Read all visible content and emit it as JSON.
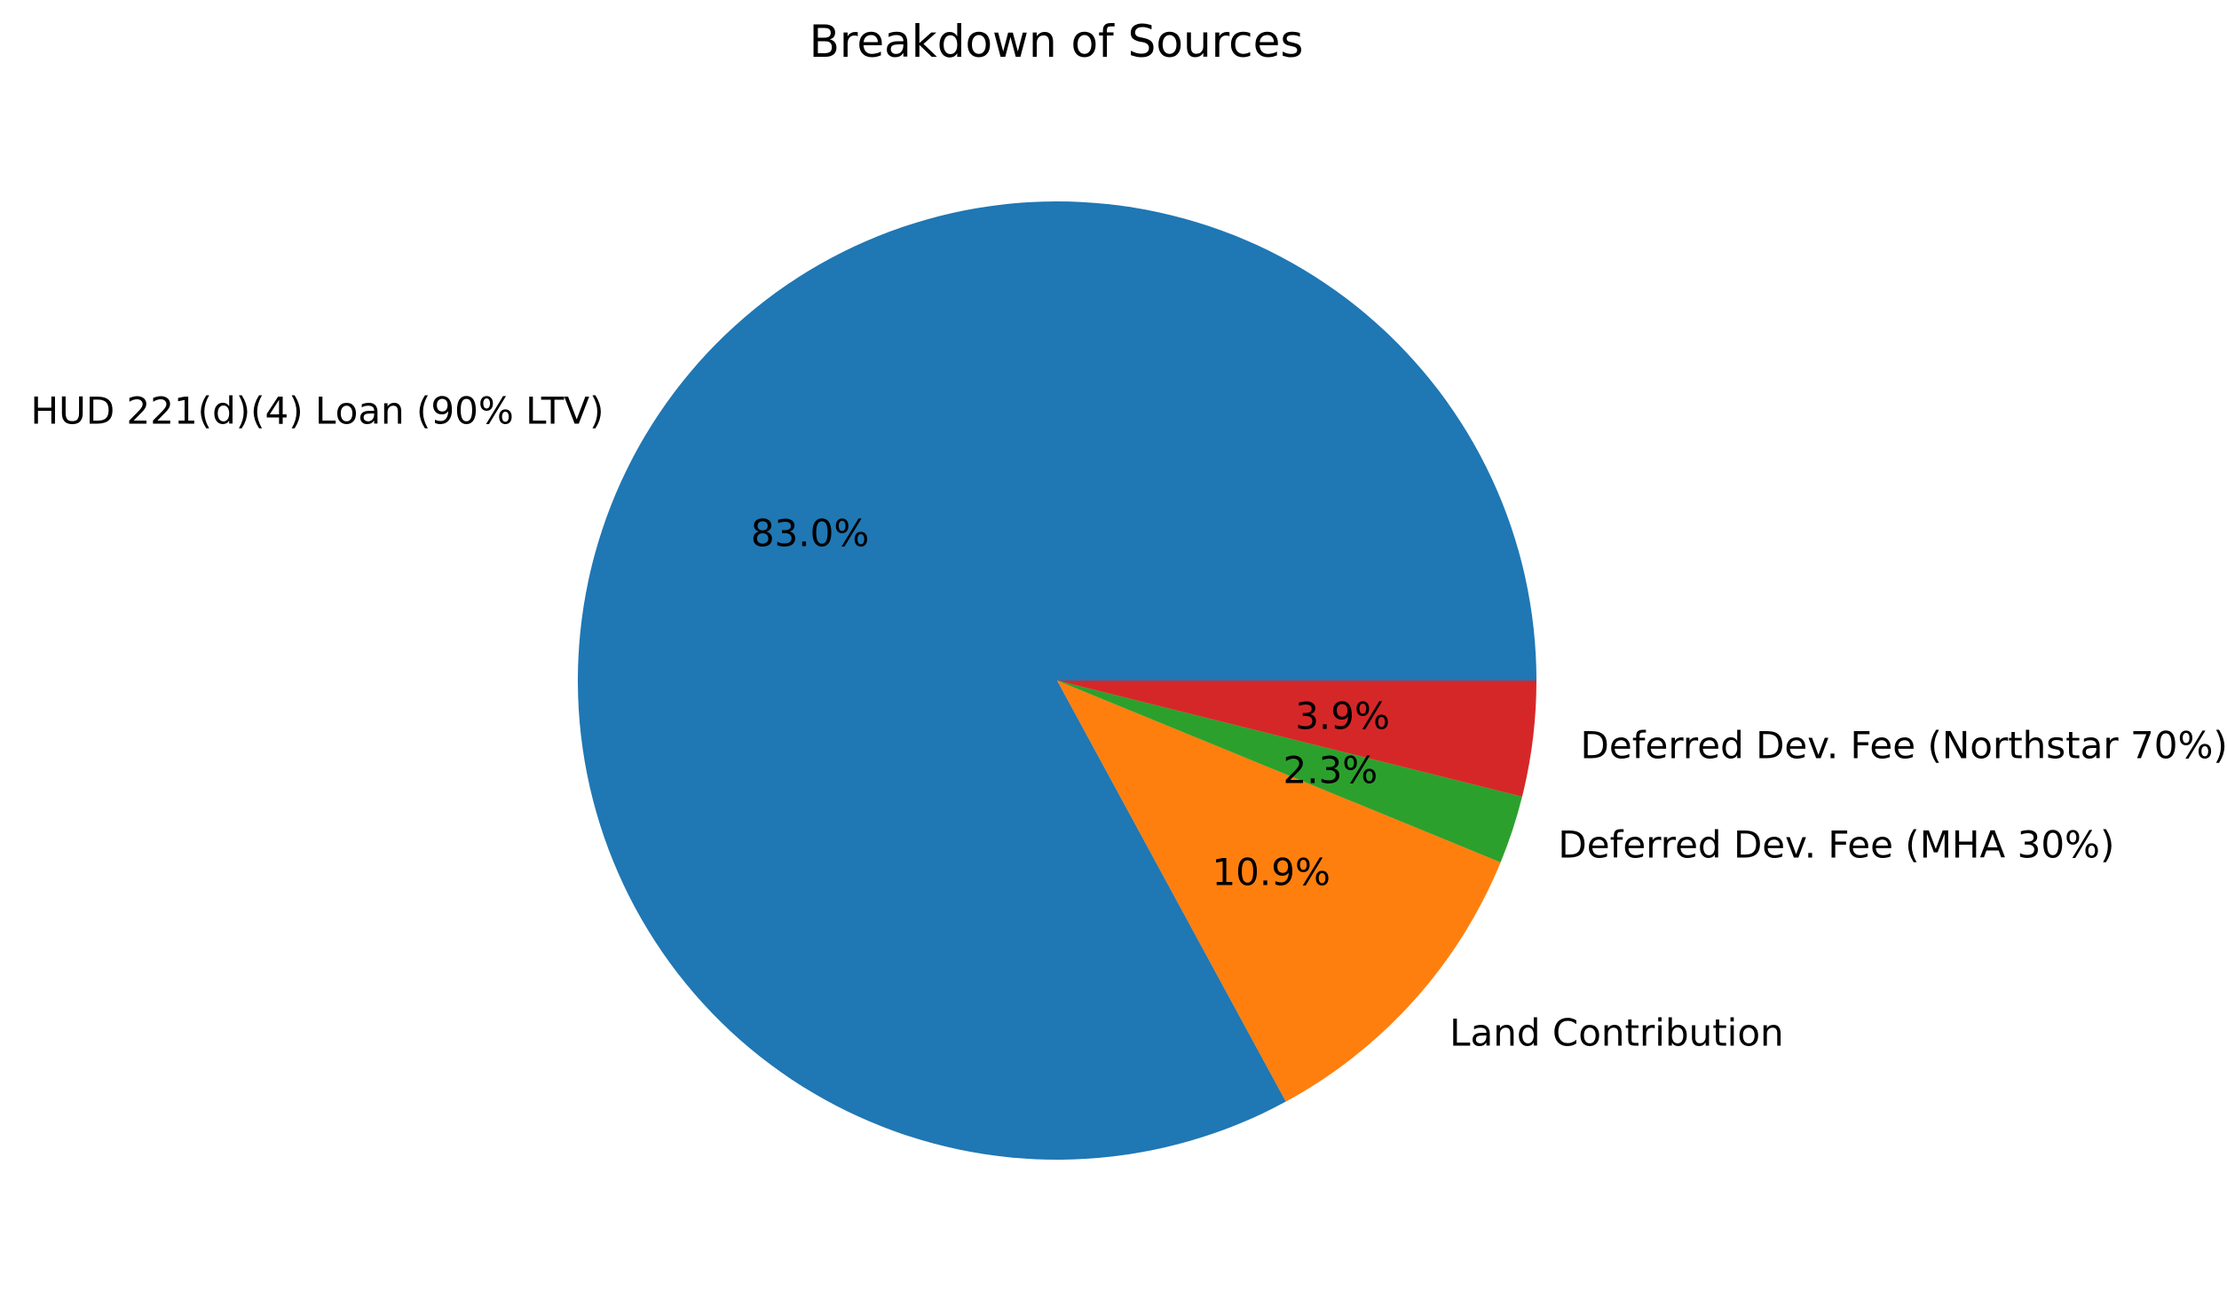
{
  "chart_data": {
    "type": "pie",
    "title": "Breakdown of Sources",
    "slices": [
      {
        "label": "HUD 221(d)(4) Loan (90% LTV)",
        "value": 83.0,
        "percent_label": "83.0%",
        "color": "#1f77b4"
      },
      {
        "label": "Land Contribution",
        "value": 10.9,
        "percent_label": "10.9%",
        "color": "#ff7f0e"
      },
      {
        "label": "Deferred Dev. Fee (MHA 30%)",
        "value": 2.3,
        "percent_label": "2.3%",
        "color": "#2ca02c"
      },
      {
        "label": "Deferred Dev. Fee (Northstar 70%)",
        "value": 3.9,
        "percent_label": "3.9%",
        "color": "#d62728"
      }
    ],
    "start_angle_deg": 0,
    "direction": "counterclockwise",
    "label_radius_ratio": 1.1,
    "percent_radius_ratio": 0.6,
    "legend": "none",
    "background_color": "#ffffff",
    "text_color": "#000000"
  }
}
